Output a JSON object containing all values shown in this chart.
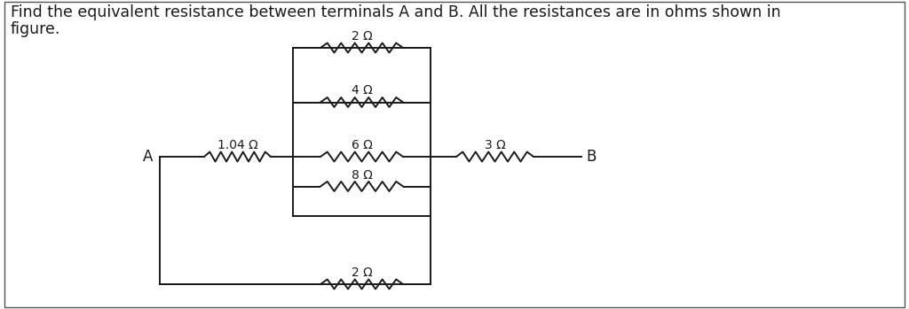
{
  "title_line1": "Find the equivalent resistance between terminals A and B. All the resistances are in ohms shown in",
  "title_line2": "figure.",
  "bg_color": "#ffffff",
  "line_color": "#1a1a1a",
  "font_size_title": 12.5,
  "label_R1": "1.04 Ω",
  "label_R2": "2 Ω",
  "label_R3": "4 Ω",
  "label_R4": "6 Ω",
  "label_R5": "8 Ω",
  "label_R6": "2 Ω",
  "label_R7": "3 Ω",
  "terminal_A": "A",
  "terminal_B": "B",
  "label_fontsize": 10
}
